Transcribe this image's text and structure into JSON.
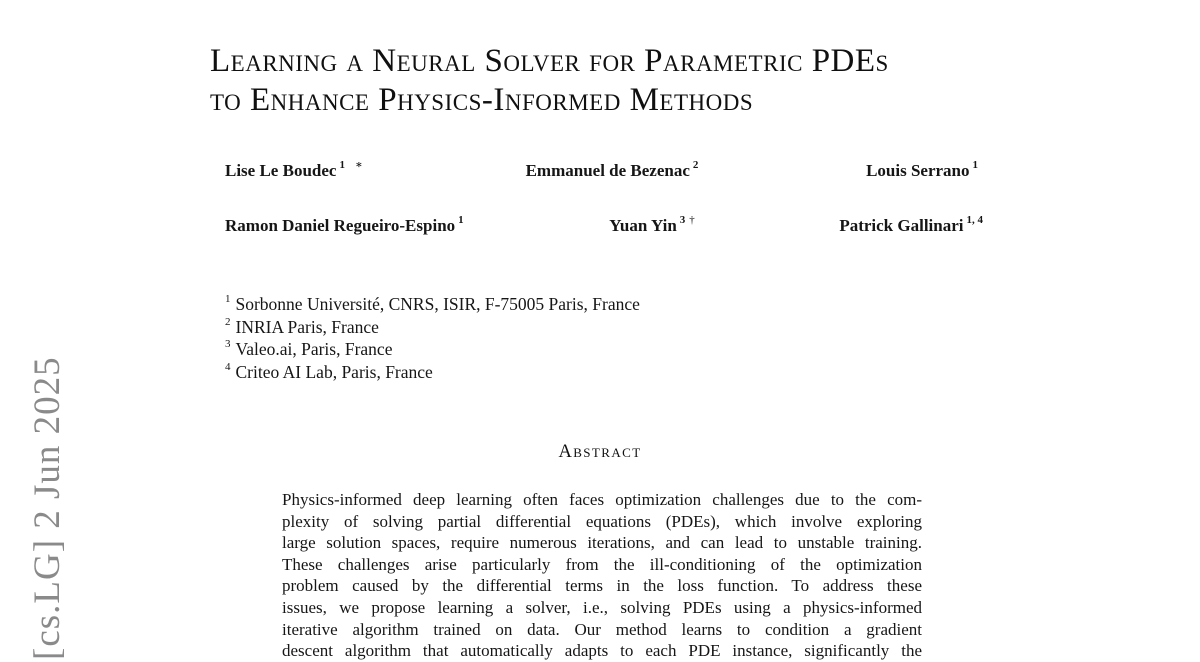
{
  "stamp": {
    "text": "[cs.LG] 2 Jun 2025",
    "color": "#8a8a8a"
  },
  "title": {
    "line1": "Learning a Neural Solver for Parametric PDEs",
    "line2": "to Enhance Physics-Informed Methods"
  },
  "authors": {
    "row1": [
      {
        "name": "Lise Le Boudec",
        "sup": "1",
        "note": "∗"
      },
      {
        "name": "Emmanuel de Bezenac",
        "sup": "2",
        "note": ""
      },
      {
        "name": "Louis Serrano",
        "sup": "1",
        "note": ""
      }
    ],
    "row2": [
      {
        "name": "Ramon Daniel Regueiro-Espino",
        "sup": "1",
        "note": ""
      },
      {
        "name": "Yuan Yin",
        "sup": "3",
        "note": "†"
      },
      {
        "name": "Patrick Gallinari",
        "sup": "1, 4",
        "note": ""
      }
    ]
  },
  "affiliations": [
    {
      "sup": "1",
      "text": "Sorbonne Université, CNRS, ISIR, F-75005 Paris, France"
    },
    {
      "sup": "2",
      "text": "INRIA Paris, France"
    },
    {
      "sup": "3",
      "text": "Valeo.ai, Paris, France"
    },
    {
      "sup": "4",
      "text": "Criteo AI Lab, Paris, France"
    }
  ],
  "abstract": {
    "heading": "Abstract",
    "lines": [
      "Physics-informed deep learning often faces optimization challenges due to the com-",
      "plexity of solving partial differential equations (PDEs), which involve exploring",
      "large solution spaces, require numerous iterations, and can lead to unstable training.",
      "These challenges arise particularly from the ill-conditioning of the optimization",
      "problem caused by the differential terms in the loss function.  To address these",
      "issues, we propose learning a solver, i.e., solving PDEs using a physics-informed",
      "iterative algorithm trained on data.  Our method learns to condition a gradient",
      "descent algorithm that automatically adapts to each PDE instance, significantly the"
    ]
  }
}
